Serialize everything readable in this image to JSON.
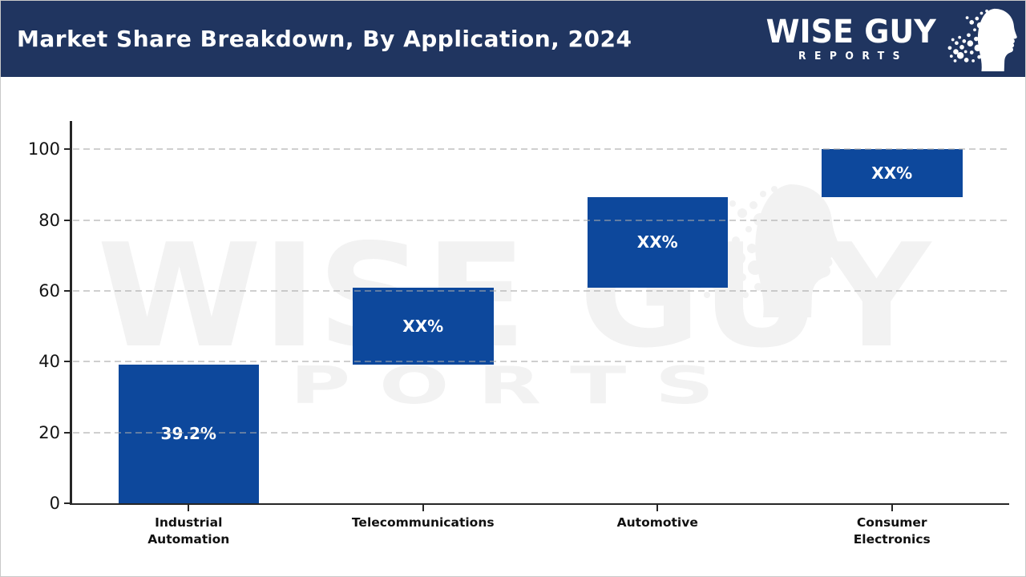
{
  "header": {
    "title": "Market Share Breakdown, By Application, 2024",
    "bg_color": "#203560",
    "logo": {
      "line1": "WISE GUY",
      "line2": "REPORTS"
    }
  },
  "watermark": {
    "line1": "WISE GUY",
    "line2": "R E P O R T S",
    "color": "#f2f2f2"
  },
  "chart_data": {
    "type": "bar",
    "subtype": "waterfall",
    "title": "Market Share Breakdown, By Application, 2024",
    "categories": [
      "Industrial Automation",
      "Telecommunications",
      "Automotive",
      "Consumer Electronics"
    ],
    "category_lines": [
      [
        "Industrial",
        "Automation"
      ],
      [
        "Telecommunications"
      ],
      [
        "Automotive"
      ],
      [
        "Consumer",
        "Electronics"
      ]
    ],
    "segments": [
      {
        "category": "Industrial Automation",
        "start": 0,
        "end": 39.2,
        "label": "39.2%"
      },
      {
        "category": "Telecommunications",
        "start": 39.2,
        "end": 61.0,
        "label": "XX%"
      },
      {
        "category": "Automotive",
        "start": 61.0,
        "end": 86.6,
        "label": "XX%"
      },
      {
        "category": "Consumer Electronics",
        "start": 86.6,
        "end": 100.0,
        "label": "XX%"
      }
    ],
    "xlabel": "",
    "ylabel": "",
    "ylim": [
      0,
      108
    ],
    "yticks": [
      0,
      20,
      40,
      60,
      80,
      100
    ],
    "grid": "dashed horizontal, drawn above bars",
    "legend": "none",
    "bar_color": "#0d489c",
    "bar_label_color": "#ffffff",
    "axis_color": "#262626",
    "tick_label_color": "#141414"
  }
}
